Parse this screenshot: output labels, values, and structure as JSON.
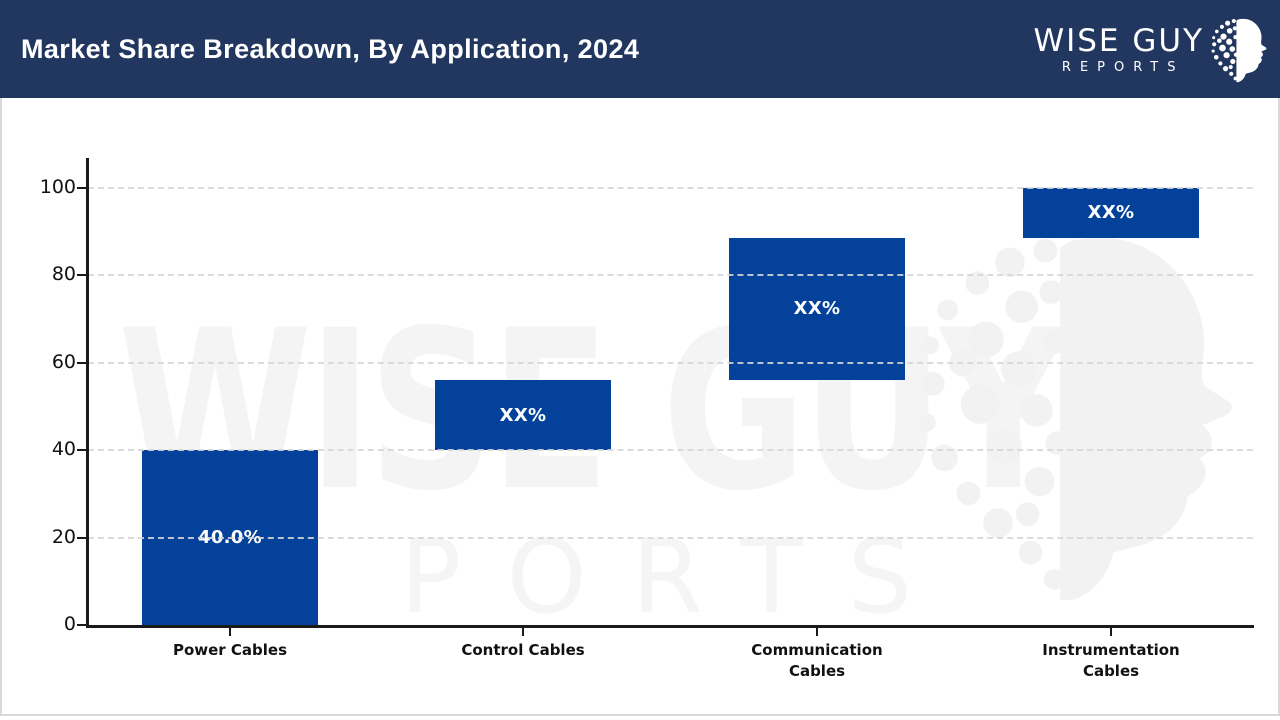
{
  "header": {
    "title": "Market Share Breakdown, By Application, 2024",
    "logo_line1": "WISE GUY",
    "logo_line2": "REPORTS",
    "bg_color": "#223760"
  },
  "watermark": {
    "line1": "WISE GUY",
    "line2": "PORTS"
  },
  "chart_data": {
    "type": "bar",
    "subtype": "waterfall",
    "title": "Market Share Breakdown, By Application, 2024",
    "categories": [
      "Power Cables",
      "Control Cables",
      "Communication Cables",
      "Instrumentation Cables"
    ],
    "series": [
      {
        "name": "Market Share",
        "segments": [
          {
            "category": "Power Cables",
            "start": 0,
            "end": 40,
            "label": "40.0%"
          },
          {
            "category": "Control Cables",
            "start": 40,
            "end": 56,
            "label": "XX%"
          },
          {
            "category": "Communication Cables",
            "start": 56,
            "end": 88.5,
            "label": "XX%"
          },
          {
            "category": "Instrumentation Cables",
            "start": 88.5,
            "end": 100,
            "label": "XX%"
          }
        ]
      }
    ],
    "xlabel": "",
    "ylabel": "",
    "ylim": [
      0,
      100
    ],
    "yticks": [
      0,
      20,
      40,
      60,
      80,
      100
    ],
    "grid": "horizontal-dashed",
    "grid_above_bars": true,
    "legend": "none",
    "bar_color": "#04419b",
    "bar_label_color": "#ffffff",
    "axis_color": "#1a1a1a",
    "gridline_color": "#d9d9d9",
    "header_color": "#223760",
    "watermark_color": "#f4f4f4"
  }
}
